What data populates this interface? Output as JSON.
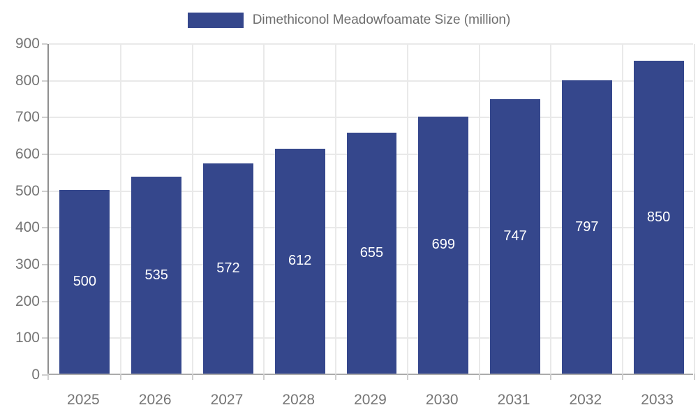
{
  "legend": {
    "label": "Dimethiconol Meadowfoamate Size (million)"
  },
  "chart_data": {
    "type": "bar",
    "title": "Dimethiconol Meadowfoamate Size (million)",
    "categories": [
      "2025",
      "2026",
      "2027",
      "2028",
      "2029",
      "2030",
      "2031",
      "2032",
      "2033"
    ],
    "values": [
      500,
      535,
      572,
      612,
      655,
      699,
      747,
      797,
      850
    ],
    "xlabel": "",
    "ylabel": "",
    "ylim": [
      0,
      900
    ],
    "ytick_step": 100,
    "grid": true,
    "legend_position": "top-center",
    "bar_label_position": "inside-center"
  },
  "colors": {
    "bar": "#35478c",
    "bar_label": "#ffffff",
    "axis_label": "#757575",
    "legend_text": "#6e6e6e",
    "grid": "#e9e9e9",
    "axis_line": "#9a9a9a"
  }
}
